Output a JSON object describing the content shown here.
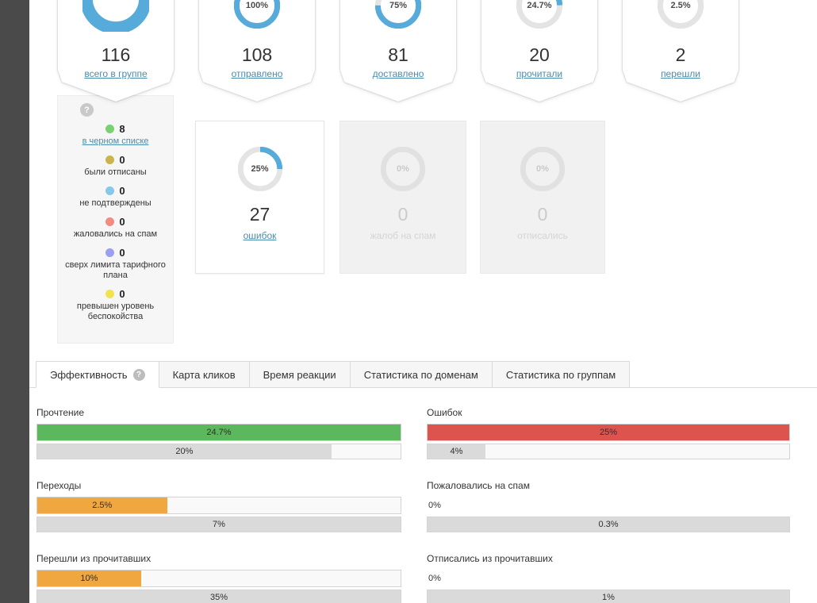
{
  "colors": {
    "blue": "#56abdb",
    "green": "#5cb85c",
    "orange": "#f0a73f",
    "red": "#dd544e",
    "track": "#e4e4e4",
    "disabled_track": "#e2e1e1"
  },
  "summary_cards": [
    {
      "value": "116",
      "label": "всего в группе",
      "percent": 100
    },
    {
      "value": "108",
      "label": "отправлено",
      "percent": 100,
      "percent_label": "100%"
    },
    {
      "value": "81",
      "label": "доставлено",
      "percent": 75,
      "percent_label": "75%"
    },
    {
      "value": "20",
      "label": "прочитали",
      "percent": 24.7,
      "percent_label": "24.7%"
    },
    {
      "value": "2",
      "label": "перешли",
      "percent": 2.5,
      "percent_label": "2.5%"
    }
  ],
  "group_panel": {
    "help_icon": "?",
    "items": [
      {
        "color": "#77d26f",
        "value": "8",
        "label": "в черном списке"
      },
      {
        "color": "#cbb54b",
        "value": "0",
        "label": "были отписаны"
      },
      {
        "color": "#86c7ec",
        "value": "0",
        "label": "не подтверждены"
      },
      {
        "color": "#f28b82",
        "value": "0",
        "label": "жаловались на спам"
      },
      {
        "color": "#9aa0ef",
        "value": "0",
        "label": "сверх лимита тарифного плана"
      },
      {
        "color": "#f3e34b",
        "value": "0",
        "label": "превышен уровень беспокойства"
      }
    ]
  },
  "secondary_cards": [
    {
      "percent": 25,
      "percent_label": "25%",
      "value": "27",
      "label": "ошибок"
    },
    {
      "percent": 0,
      "percent_label": "0%",
      "value": "0",
      "label": "жалоб на спам"
    },
    {
      "percent": 0,
      "percent_label": "0%",
      "value": "0",
      "label": "отписались"
    }
  ],
  "tabs": [
    {
      "label": "Эффективность",
      "help": "?"
    },
    {
      "label": "Карта кликов"
    },
    {
      "label": "Время реакции"
    },
    {
      "label": "Статистика по доменам"
    },
    {
      "label": "Статистика по группам"
    }
  ],
  "chart_data": {
    "type": "bar",
    "title": "Эффективность",
    "note": "each metric shows campaign value vs benchmark; bars normalized to the larger of the two",
    "columns": {
      "left": [
        {
          "label": "Прочтение",
          "value": 24.7,
          "value_label": "24.7%",
          "color": "green",
          "benchmark": 20,
          "benchmark_label": "20%"
        },
        {
          "label": "Переходы",
          "value": 2.5,
          "value_label": "2.5%",
          "color": "orange",
          "benchmark": 7,
          "benchmark_label": "7%"
        },
        {
          "label": "Перешли из прочитавших",
          "value": 10,
          "value_label": "10%",
          "color": "orange",
          "benchmark": 35,
          "benchmark_label": "35%"
        }
      ],
      "right": [
        {
          "label": "Ошибок",
          "value": 25,
          "value_label": "25%",
          "color": "red",
          "benchmark": 4,
          "benchmark_label": "4%"
        },
        {
          "label": "Пожаловались на спам",
          "value": 0,
          "value_label": "0%",
          "color": "orange",
          "benchmark": 0.3,
          "benchmark_label": "0.3%"
        },
        {
          "label": "Отписались из прочитавших",
          "value": 0,
          "value_label": "0%",
          "color": "orange",
          "benchmark": 1,
          "benchmark_label": "1%"
        }
      ]
    }
  }
}
